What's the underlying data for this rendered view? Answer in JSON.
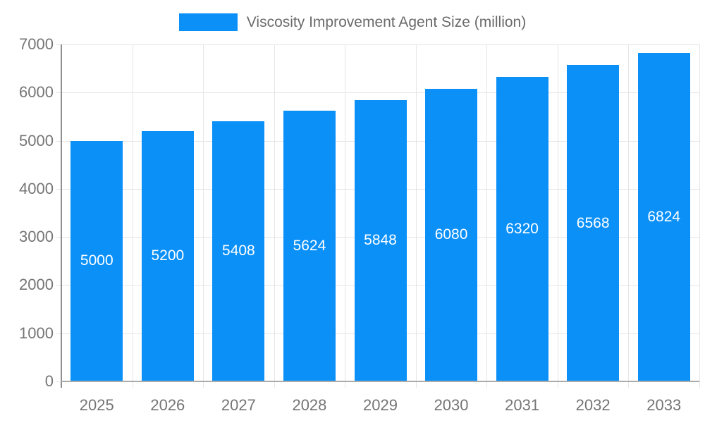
{
  "chart_data": {
    "type": "bar",
    "title": "Viscosity Improvement Agent Size (million)",
    "categories": [
      "2025",
      "2026",
      "2027",
      "2028",
      "2029",
      "2030",
      "2031",
      "2032",
      "2033"
    ],
    "series": [
      {
        "name": "Viscosity Improvement Agent Size (million)",
        "values": [
          5000,
          5200,
          5408,
          5624,
          5848,
          6080,
          6320,
          6568,
          6824
        ]
      }
    ],
    "bar_labels": [
      "5000",
      "5200",
      "5408",
      "5624",
      "5848",
      "6080",
      "6320",
      "6568",
      "6824"
    ],
    "xlabel": "",
    "ylabel": "",
    "ylim": [
      0,
      7000
    ],
    "yticks": [
      0,
      1000,
      2000,
      3000,
      4000,
      5000,
      6000,
      7000
    ],
    "ytick_labels": [
      "0",
      "1000",
      "2000",
      "3000",
      "4000",
      "5000",
      "6000",
      "7000"
    ],
    "grid": true,
    "legend_position": "top-center",
    "colors": {
      "bar": "#0b90f8",
      "bar_label": "#ffffff",
      "axis_text": "#757575",
      "legend_text": "#6b6b6b",
      "gridline": "#e6e6e6",
      "y_axis_line": "#8f8f8f",
      "x_axis_line": "#ababab"
    }
  }
}
